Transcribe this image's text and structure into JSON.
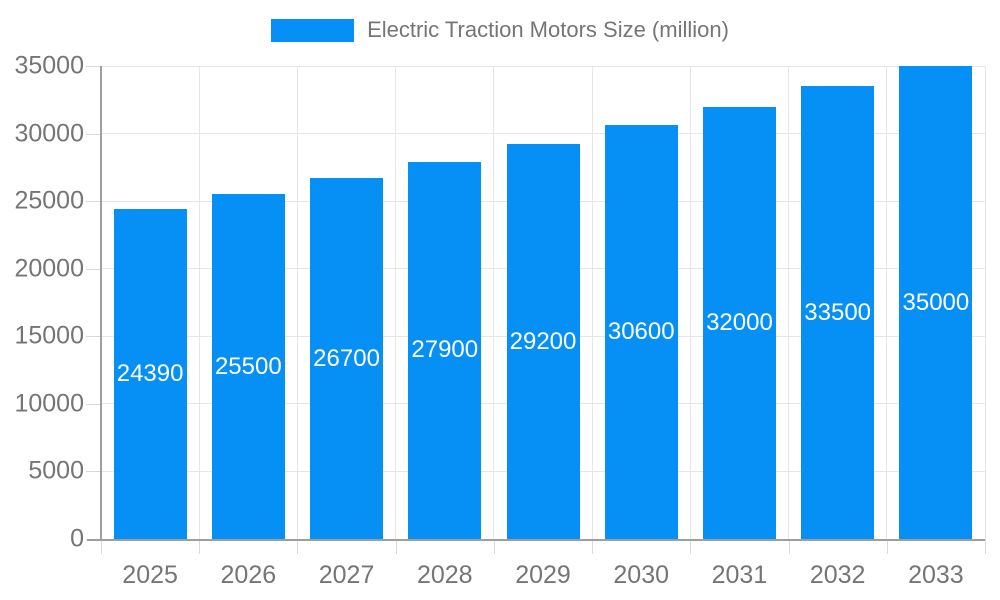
{
  "chart_data": {
    "type": "bar",
    "title": "Electric Traction Motors Size (million)",
    "categories": [
      "2025",
      "2026",
      "2027",
      "2028",
      "2029",
      "2030",
      "2031",
      "2032",
      "2033"
    ],
    "values": [
      24390,
      25500,
      26700,
      27900,
      29200,
      30600,
      32000,
      33500,
      35000
    ],
    "series": [
      {
        "name": "Electric Traction Motors Size (million)",
        "values": [
          24390,
          25500,
          26700,
          27900,
          29200,
          30600,
          32000,
          33500,
          35000
        ]
      }
    ],
    "bar_labels": [
      "24390",
      "25500",
      "26700",
      "27900",
      "29200",
      "30600",
      "32000",
      "33500",
      "35000"
    ],
    "xlabel": "",
    "ylabel": "",
    "ylim": [
      0,
      35000
    ],
    "ytick_interval": 5000,
    "yticks": [
      0,
      5000,
      10000,
      15000,
      20000,
      25000,
      30000,
      35000
    ],
    "ytick_labels": [
      "0",
      "5000",
      "10000",
      "15000",
      "20000",
      "25000",
      "30000",
      "35000"
    ],
    "grid": true,
    "legend_position": "top"
  },
  "legend": {
    "label": "Electric Traction Motors Size (million)"
  },
  "colors": {
    "bar": "#0690F5",
    "bar_label_text": "#ffffff",
    "axis_text": "#757575",
    "gridline": "#e6e6e6",
    "tick": "#d9d9d9",
    "axis_line": "#9e9e9e",
    "background": "#ffffff"
  }
}
